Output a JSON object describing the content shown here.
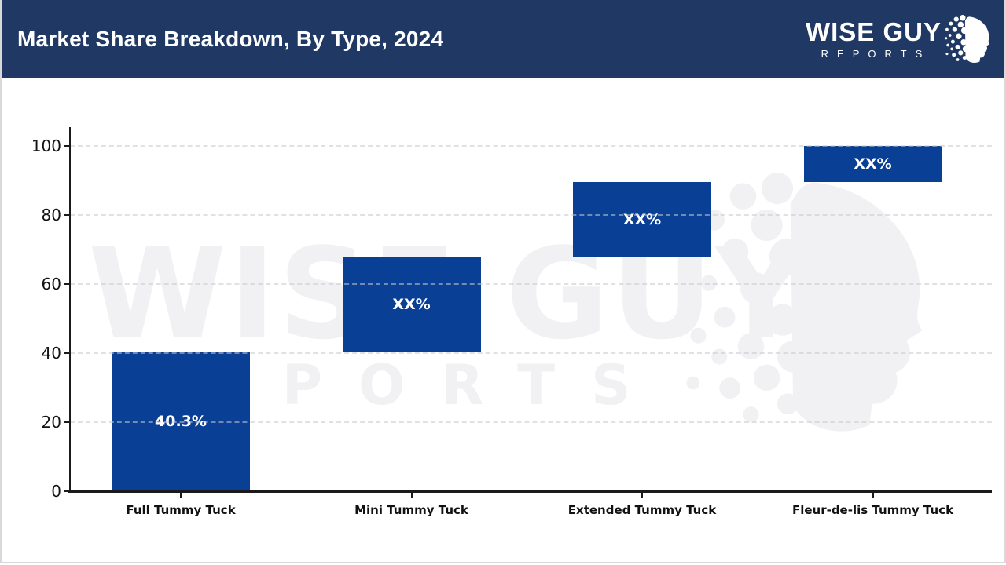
{
  "header": {
    "title": "Market Share Breakdown, By Type, 2024",
    "logo": {
      "name": "WISE GUY",
      "sub": "REPORTS"
    }
  },
  "watermark": {
    "line1": "WISE GUY",
    "line2": "REPORTS"
  },
  "colors": {
    "header_bg": "#203864",
    "bar": "#0a3f96",
    "axis": "#1a1a1a",
    "grid": "#c8c8cd",
    "watermark": "#f1f1f4"
  },
  "chart_data": {
    "type": "bar",
    "variant": "waterfall",
    "title": "Market Share Breakdown, By Type, 2024",
    "categories": [
      "Full Tummy Tuck",
      "Mini Tummy Tuck",
      "Extended Tummy Tuck",
      "Fleur-de-lis Tummy Tuck"
    ],
    "bars": [
      {
        "category": "Full Tummy Tuck",
        "start": 0,
        "end": 40.3,
        "label": "40.3%"
      },
      {
        "category": "Mini Tummy Tuck",
        "start": 40.3,
        "end": 67.7,
        "label": "XX%"
      },
      {
        "category": "Extended Tummy Tuck",
        "start": 67.7,
        "end": 89.5,
        "label": "XX%"
      },
      {
        "category": "Fleur-de-lis Tummy Tuck",
        "start": 89.5,
        "end": 100,
        "label": "XX%"
      }
    ],
    "xlabel": "",
    "ylabel": "",
    "yticks": [
      0,
      20,
      40,
      60,
      80,
      100
    ],
    "ylim": [
      0,
      105
    ],
    "grid": {
      "axis": "y",
      "style": "dashed"
    },
    "legend": "none",
    "bar_color": "#0a3f96"
  }
}
